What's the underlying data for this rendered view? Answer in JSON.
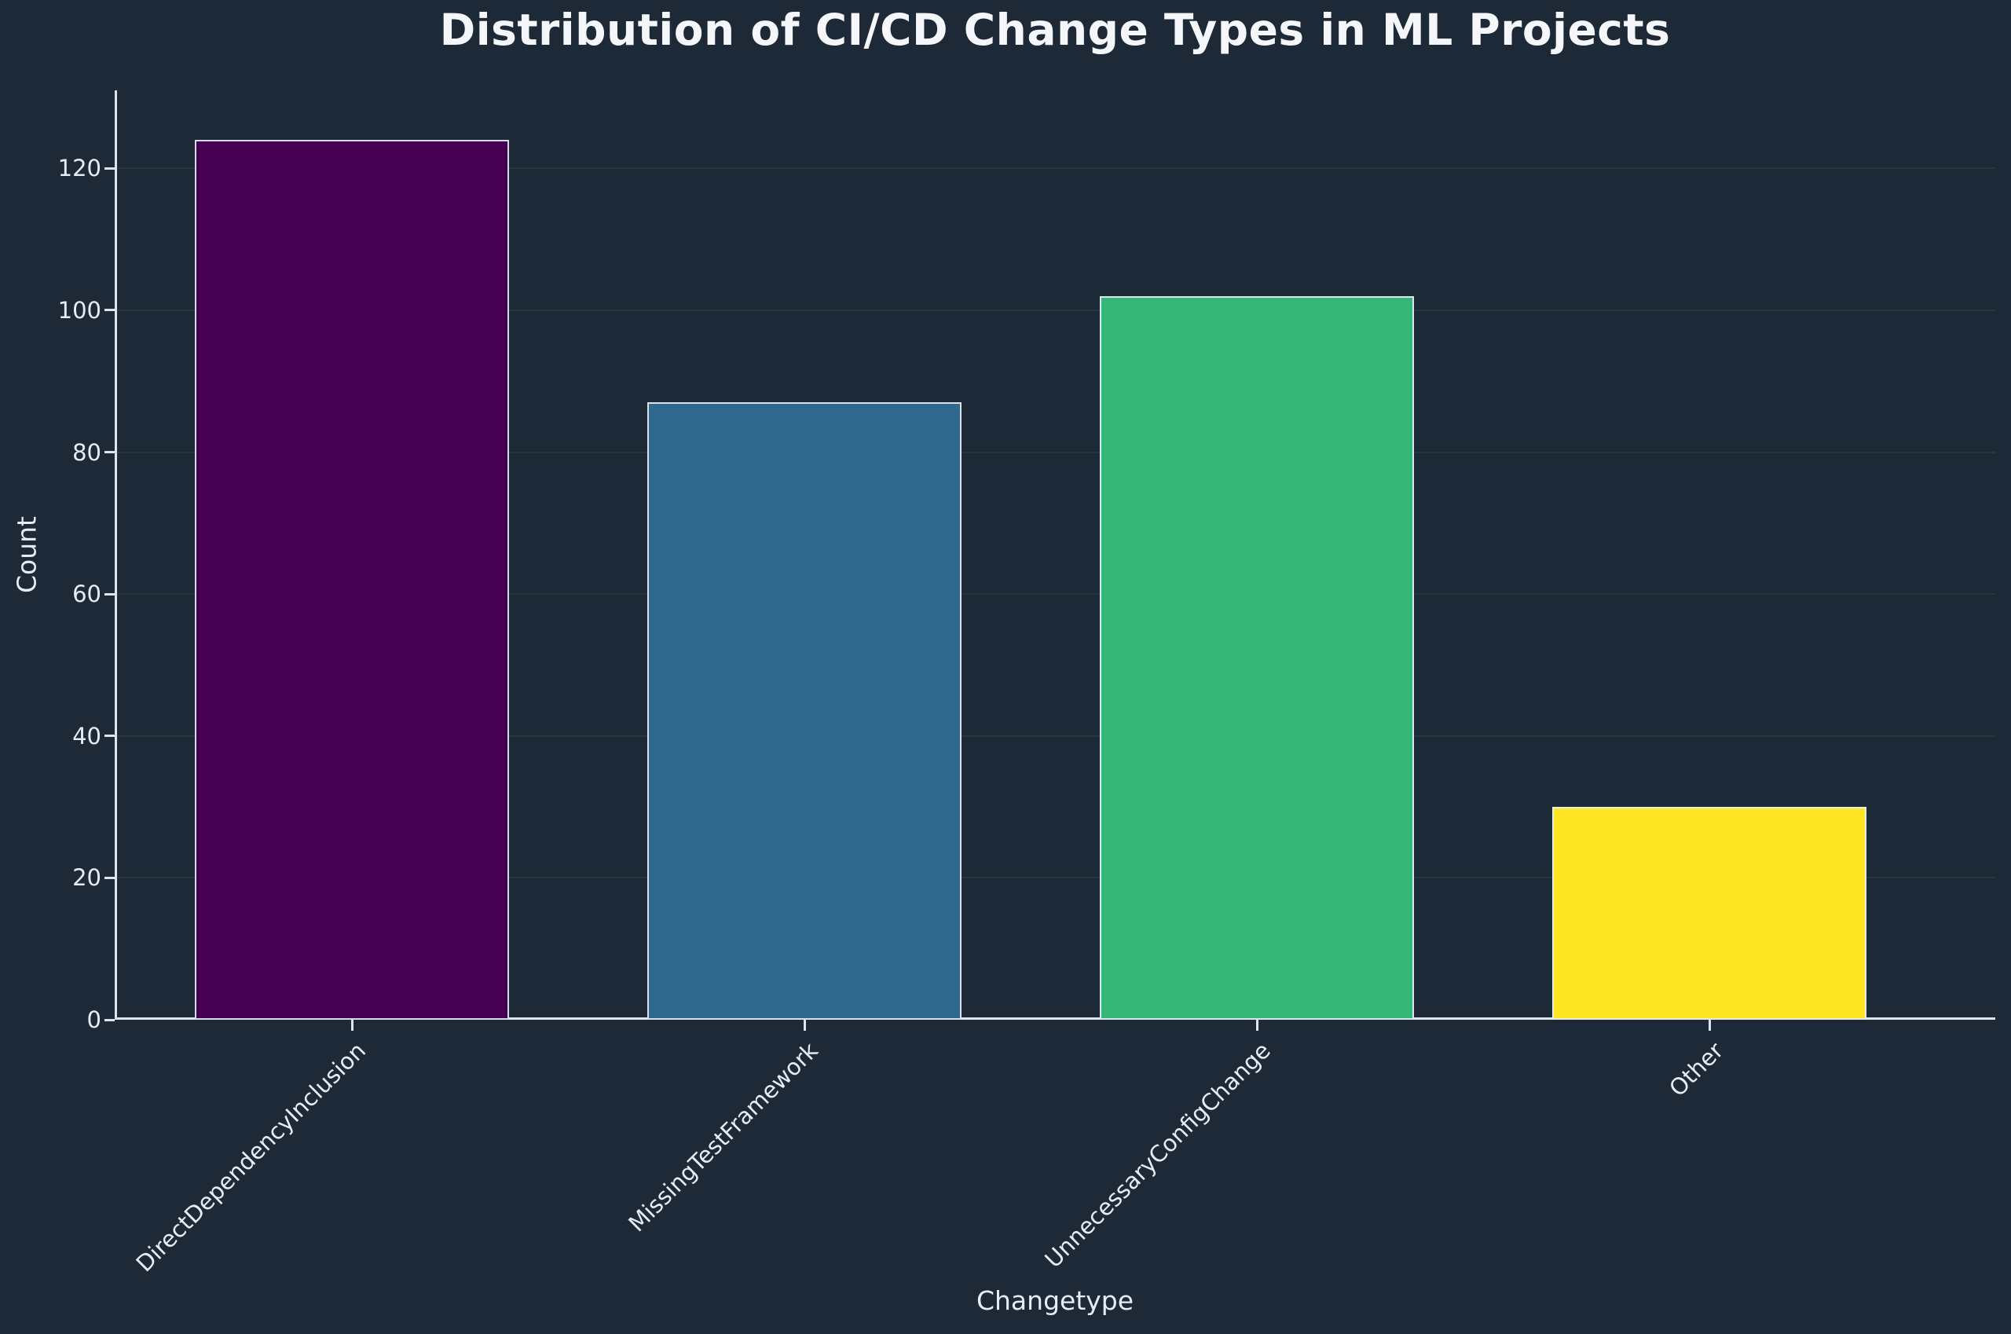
{
  "chart_data": {
    "type": "bar",
    "title": "Distribution of CI/CD Change Types in ML Projects",
    "xlabel": "Changetype",
    "ylabel": "Count",
    "categories": [
      "DirectDependencyInclusion",
      "MissingTestFramework",
      "UnnecessaryConfigChange",
      "Other"
    ],
    "values": [
      124,
      87,
      102,
      30
    ],
    "bar_colors": [
      "#440154",
      "#31688e",
      "#35b779",
      "#fde725"
    ],
    "yticks": [
      0,
      20,
      40,
      60,
      80,
      100,
      120
    ],
    "ylim": [
      0,
      131
    ],
    "grid": "horizontal-faint",
    "legend": "none",
    "x_tick_rotation_deg": 45,
    "background_color": "#1d2936",
    "text_color": "#e7ecf4",
    "axis_color": "#dde4ee"
  }
}
